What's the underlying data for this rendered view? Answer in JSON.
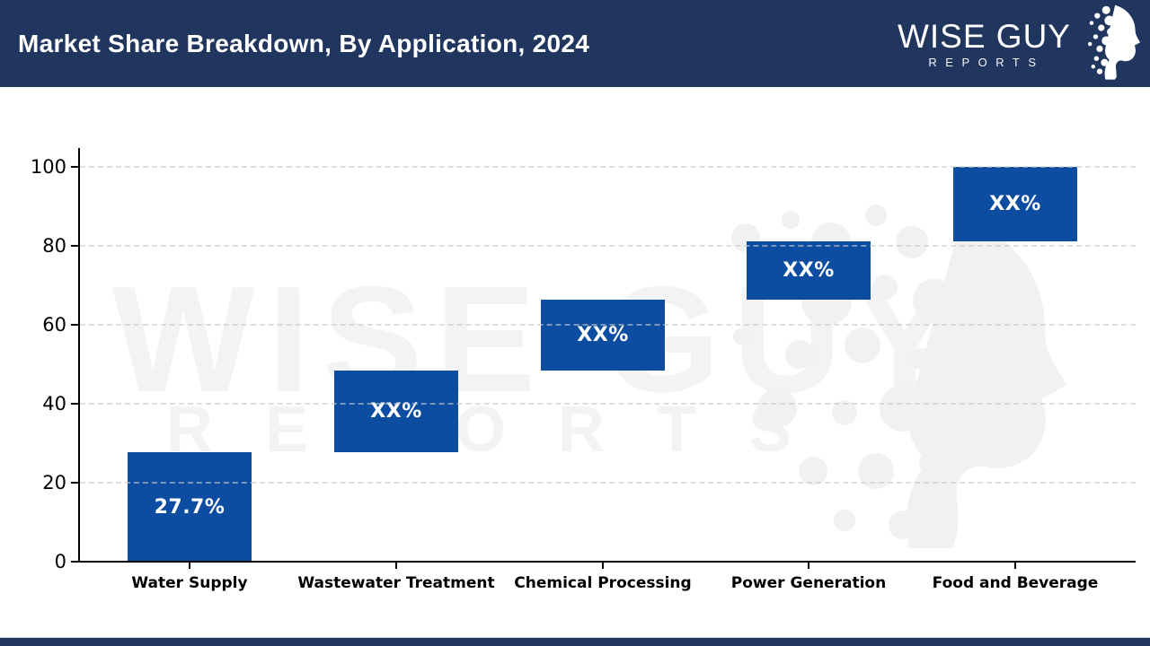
{
  "header": {
    "title": "Market Share Breakdown, By Application, 2024",
    "logo": {
      "line1": "WISE GUY",
      "line2": "REPORTS"
    }
  },
  "watermark": {
    "line1": "WISE GUY",
    "line2": "REPORTS"
  },
  "colors": {
    "header_bg": "#20365f",
    "footer_bg": "#20365f",
    "bar": "#0d4da1",
    "gridline": "#c8c8c8",
    "axis": "#000000",
    "bar_label_text": "#ffffff",
    "watermark": "#f3f3f5"
  },
  "chart_data": {
    "type": "bar",
    "subtype": "waterfall",
    "title": "Market Share Breakdown, By Application, 2024",
    "categories": [
      "Water Supply",
      "Wastewater Treatment",
      "Chemical Processing",
      "Power Generation",
      "Food and Beverage"
    ],
    "segments": [
      {
        "category": "Water Supply",
        "start": 0,
        "end": 27.7,
        "label": "27.7%"
      },
      {
        "category": "Wastewater Treatment",
        "start": 27.7,
        "end": 48.4,
        "label": "XX%"
      },
      {
        "category": "Chemical Processing",
        "start": 48.4,
        "end": 66.4,
        "label": "XX%"
      },
      {
        "category": "Power Generation",
        "start": 66.4,
        "end": 81.1,
        "label": "XX%"
      },
      {
        "category": "Food and Beverage",
        "start": 81.1,
        "end": 100,
        "label": "XX%"
      }
    ],
    "yticks": [
      0,
      20,
      40,
      60,
      80,
      100
    ],
    "ylim": [
      0,
      105
    ],
    "xlabel": "",
    "ylabel": "",
    "grid": "horizontal dashed, drawn over bars",
    "legend": "none"
  }
}
